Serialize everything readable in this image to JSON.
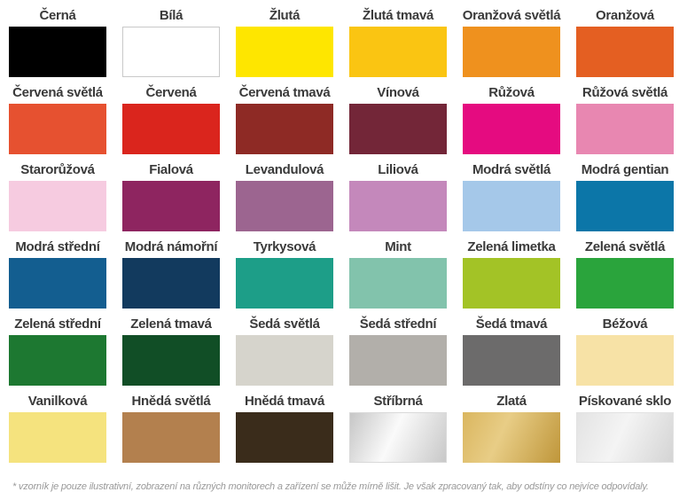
{
  "page": {
    "background": "#ffffff",
    "footnote": "* vzorník je pouze ilustrativní, zobrazení na různých monitorech a zařízení se může mírně lišit. Je však zpracovaný tak, aby odstíny co nejvíce odpovídaly."
  },
  "grid": {
    "columns": 6,
    "rows": 6
  },
  "swatches": [
    {
      "id": "cerna",
      "name": "Černá",
      "color": "#000000"
    },
    {
      "id": "bila",
      "name": "Bílá",
      "color": "#ffffff",
      "border": "#c9c9c9"
    },
    {
      "id": "zluta",
      "name": "Žlutá",
      "color": "#fee600"
    },
    {
      "id": "zluta-tmava",
      "name": "Žlutá tmavá",
      "color": "#fac512"
    },
    {
      "id": "oranzova-svetla",
      "name": "Oranžová světlá",
      "color": "#ef911e"
    },
    {
      "id": "oranzova",
      "name": "Oranžová",
      "color": "#e45f22"
    },
    {
      "id": "cervena-svetla",
      "name": "Červená světlá",
      "color": "#e65130"
    },
    {
      "id": "cervena",
      "name": "Červená",
      "color": "#da251d"
    },
    {
      "id": "cervena-tmava",
      "name": "Červená tmavá",
      "color": "#8e2a25"
    },
    {
      "id": "vinova",
      "name": "Vínová",
      "color": "#732638"
    },
    {
      "id": "ruzova",
      "name": "Růžová",
      "color": "#e50b80"
    },
    {
      "id": "ruzova-svetla",
      "name": "Růžová světlá",
      "color": "#e887b1"
    },
    {
      "id": "staroruzova",
      "name": "Starorůžová",
      "color": "#f6cbe0"
    },
    {
      "id": "fialova",
      "name": "Fialová",
      "color": "#8e2560"
    },
    {
      "id": "levandulova",
      "name": "Levandulová",
      "color": "#9c6590"
    },
    {
      "id": "liliova",
      "name": "Liliová",
      "color": "#c488bb"
    },
    {
      "id": "modra-svetla",
      "name": "Modrá světlá",
      "color": "#a5c8e9"
    },
    {
      "id": "modra-gentian",
      "name": "Modrá gentian",
      "color": "#0c76a8"
    },
    {
      "id": "modra-stredni",
      "name": "Modrá střední",
      "color": "#135e90"
    },
    {
      "id": "modra-namorni",
      "name": "Modrá námořní",
      "color": "#123a5e"
    },
    {
      "id": "tyrkysova",
      "name": "Tyrkysová",
      "color": "#1d9e88"
    },
    {
      "id": "mint",
      "name": "Mint",
      "color": "#82c3ac"
    },
    {
      "id": "zelena-limetka",
      "name": "Zelená limetka",
      "color": "#a3c326"
    },
    {
      "id": "zelena-svetla",
      "name": "Zelená světlá",
      "color": "#2aa43c"
    },
    {
      "id": "zelena-stredni",
      "name": "Zelená střední",
      "color": "#1d7831"
    },
    {
      "id": "zelena-tmava",
      "name": "Zelená tmavá",
      "color": "#114e26"
    },
    {
      "id": "seda-svetla",
      "name": "Šedá světlá",
      "color": "#d6d4cc"
    },
    {
      "id": "seda-stredni",
      "name": "Šedá střední",
      "color": "#b2afaa"
    },
    {
      "id": "seda-tmava",
      "name": "Šedá tmavá",
      "color": "#6c6b6b"
    },
    {
      "id": "bezova",
      "name": "Béžová",
      "color": "#f7e2a6"
    },
    {
      "id": "vanilkova",
      "name": "Vanilková",
      "color": "#f5e37e"
    },
    {
      "id": "hneda-svetla",
      "name": "Hnědá světlá",
      "color": "#b3804e"
    },
    {
      "id": "hneda-tmava",
      "name": "Hnědá tmavá",
      "color": "#3a2c1b"
    },
    {
      "id": "stribrna",
      "name": "Stříbrná",
      "gradient": [
        "#c6c6c6",
        "#fafafa 45%",
        "#c8c8c8"
      ],
      "border": "#d9d9d9"
    },
    {
      "id": "zlata",
      "name": "Zlatá",
      "gradient": [
        "#dab65f",
        "#e8cd86 40%",
        "#bf963a"
      ]
    },
    {
      "id": "piskovane-sklo",
      "name": "Pískované sklo",
      "gradient": [
        "#e3e3e3",
        "#f4f4f4 45%",
        "#d4d4d4"
      ],
      "border": "#e2e2e2"
    }
  ]
}
